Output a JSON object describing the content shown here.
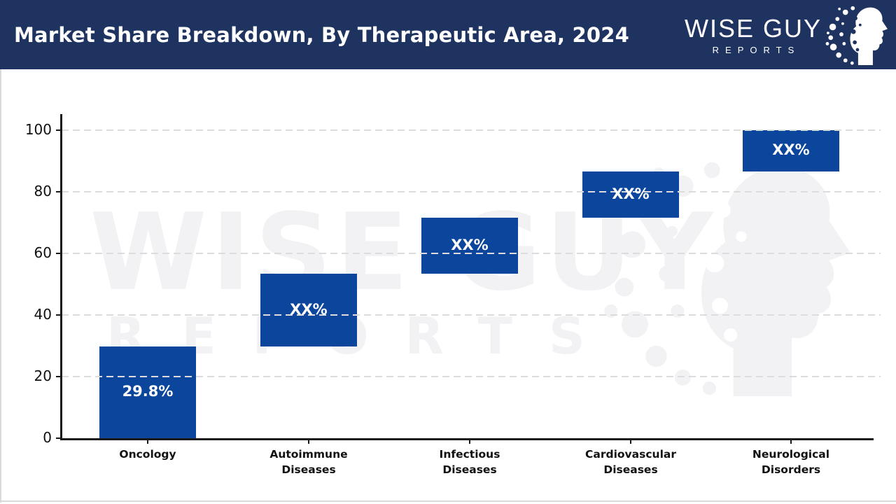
{
  "header": {
    "title": "Market Share Breakdown, By Therapeutic Area, 2024",
    "bg_color": "#1f3361",
    "logo": {
      "name": "Wise Guy Reports",
      "line1": "WISE GUY",
      "line2": "REPORTS"
    }
  },
  "watermark": {
    "line1": "WISE GUY",
    "line2": "REPORTS"
  },
  "chart_data": {
    "type": "bar",
    "subtype": "waterfall",
    "title": "Market Share Breakdown, By Therapeutic Area, 2024",
    "categories": [
      "Oncology",
      "Autoimmune Diseases",
      "Infectious Diseases",
      "Cardiovascular Diseases",
      "Neurological Disorders"
    ],
    "category_lines": [
      [
        "Oncology"
      ],
      [
        "Autoimmune",
        "Diseases"
      ],
      [
        "Infectious",
        "Diseases"
      ],
      [
        "Cardiovascular",
        "Diseases"
      ],
      [
        "Neurological",
        "Disorders"
      ]
    ],
    "segments": [
      {
        "category": "Oncology",
        "start": 0,
        "end": 29.8,
        "label": "29.8%"
      },
      {
        "category": "Autoimmune Diseases",
        "start": 29.8,
        "end": 53.5,
        "label": "XX%"
      },
      {
        "category": "Infectious Diseases",
        "start": 53.5,
        "end": 71.6,
        "label": "XX%"
      },
      {
        "category": "Cardiovascular Diseases",
        "start": 71.6,
        "end": 86.6,
        "label": "XX%"
      },
      {
        "category": "Neurological Disorders",
        "start": 86.6,
        "end": 100,
        "label": "XX%"
      }
    ],
    "yticks": [
      0,
      20,
      40,
      60,
      80,
      100
    ],
    "ylim": [
      0,
      105
    ],
    "xlabel": "",
    "ylabel": "",
    "bar_color": "#0b459c",
    "value_label_color": "#ffffff",
    "grid": {
      "visible": true,
      "style": "dashed",
      "color": "#dcdcdc",
      "axis": "y"
    },
    "legend_position": "none"
  }
}
